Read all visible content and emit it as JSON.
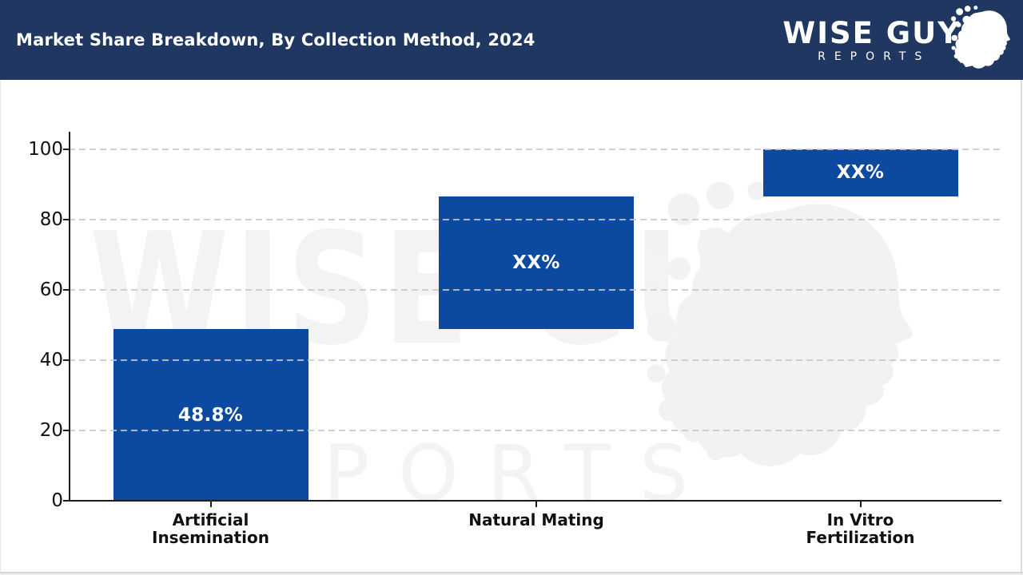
{
  "header": {
    "title": "Market Share Breakdown, By Collection Method, 2024",
    "logo": {
      "line1": "WISE GUY",
      "line2": "REPORTS"
    }
  },
  "watermark": {
    "line1": "WISE GUY",
    "line2": "REPORTS"
  },
  "chart_data": {
    "type": "bar",
    "subtype": "stacked-waterfall-percent",
    "title": "Market Share Breakdown, By Collection Method, 2024",
    "categories": [
      "Artificial\nInsemination",
      "Natural Mating",
      "In Vitro\nFertilization"
    ],
    "series": [
      {
        "name": "Market Share %",
        "segments": [
          {
            "category": "Artificial\nInsemination",
            "start": 0,
            "end": 48.8,
            "label": "48.8%"
          },
          {
            "category": "Natural Mating",
            "start": 48.8,
            "end": 86.6,
            "label": "XX%"
          },
          {
            "category": "In Vitro\nFertilization",
            "start": 86.6,
            "end": 100,
            "label": "XX%"
          }
        ]
      }
    ],
    "xlabel": "",
    "ylabel": "",
    "yticks": [
      0,
      20,
      40,
      60,
      80,
      100
    ],
    "ylim": [
      0,
      105
    ],
    "grid": "horizontal dashed, light gray, drawn above bars",
    "legend": "none",
    "bar_color": "#0b4aa0",
    "bar_label_color": "#ffffff",
    "header_bg_color": "#203861",
    "axis_color": "#1a1a1a"
  }
}
